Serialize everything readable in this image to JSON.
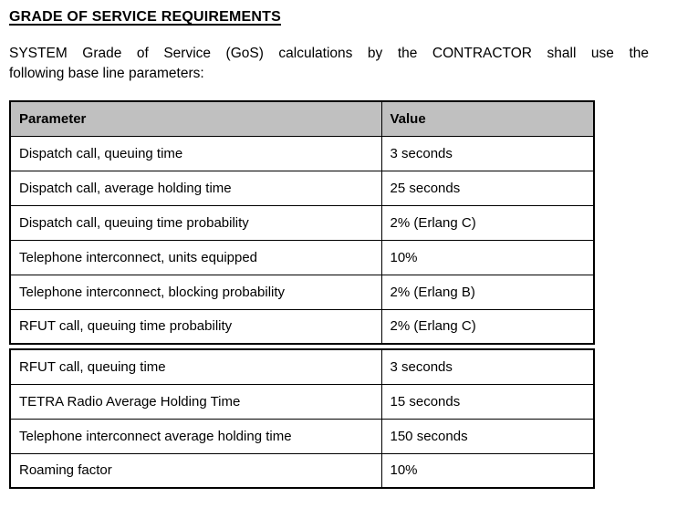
{
  "page": {
    "heading": "GRADE OF SERVICE REQUIREMENTS",
    "paragraph_lines": [
      "SYSTEM Grade of Service (GoS) calculations by the CONTRACTOR shall use the",
      "following base line parameters:"
    ]
  },
  "table": {
    "headers": {
      "parameter": "Parameter",
      "value": "Value"
    },
    "rows": [
      {
        "parameter": "Dispatch call, queuing time",
        "value": "3 seconds"
      },
      {
        "parameter": "Dispatch call, average holding time",
        "value": "25 seconds"
      },
      {
        "parameter": "Dispatch call, queuing time probability",
        "value": "2% (Erlang C)"
      },
      {
        "parameter": "Telephone interconnect, units equipped",
        "value": "10%"
      },
      {
        "parameter": "Telephone interconnect, blocking probability",
        "value": "2% (Erlang B)"
      },
      {
        "parameter": "RFUT call, queuing time probability",
        "value": "2% (Erlang C)"
      },
      {
        "parameter": "RFUT call, queuing time",
        "value": "3 seconds"
      },
      {
        "parameter": "TETRA Radio Average Holding Time",
        "value": "15 seconds"
      },
      {
        "parameter": "Telephone interconnect average holding time",
        "value": "150 seconds"
      },
      {
        "parameter": "Roaming factor",
        "value": "10%"
      }
    ]
  },
  "colors": {
    "header_bg": "#c0c0c0",
    "border": "#000000",
    "text": "#000000",
    "page_bg": "#ffffff"
  }
}
